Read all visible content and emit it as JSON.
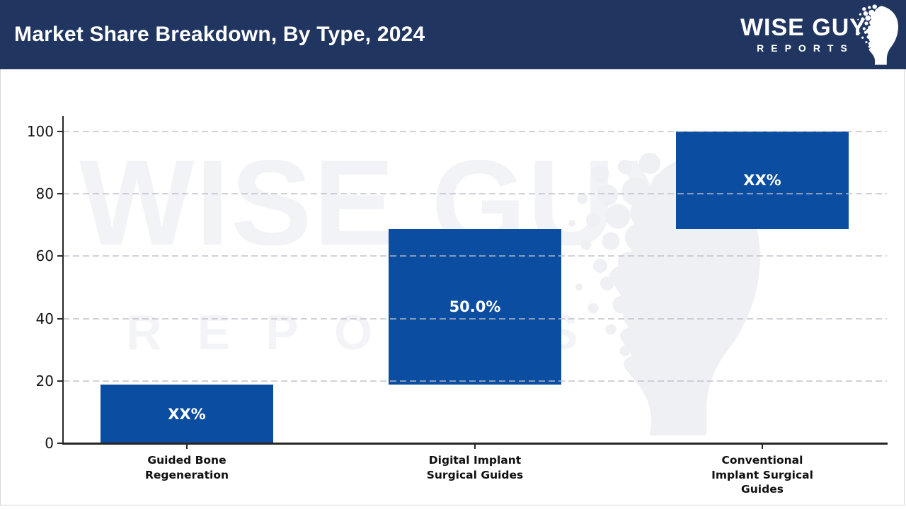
{
  "header": {
    "title": "Market Share Breakdown, By Type, 2024",
    "logo": {
      "line1": "WISE GUY",
      "line2": "REPORTS"
    },
    "bg_color": "#203560"
  },
  "watermark": {
    "line1": "WISE GUY",
    "line2": "REPORTS"
  },
  "chart_data": {
    "type": "bar",
    "subtype": "waterfall-floating-bars",
    "title": "Market Share Breakdown, By Type, 2024",
    "categories": [
      "Guided Bone\nRegeneration",
      "Digital Implant\nSurgical Guides",
      "Conventional\nImplant Surgical\nGuides"
    ],
    "segments": [
      {
        "category": "Guided Bone Regeneration",
        "start": 0,
        "end": 18.8,
        "label": "XX%"
      },
      {
        "category": "Digital Implant Surgical Guides",
        "start": 18.8,
        "end": 68.8,
        "label": "50.0%"
      },
      {
        "category": "Conventional Implant Surgical Guides",
        "start": 68.8,
        "end": 100,
        "label": "XX%"
      }
    ],
    "ylim": [
      0,
      100
    ],
    "yticks": [
      0,
      20,
      40,
      60,
      80,
      100
    ],
    "xlabel": "",
    "ylabel": "",
    "grid": {
      "horizontal": true,
      "style": "dashed",
      "above_bars": true
    },
    "legend": "none",
    "bar_color": "#0b4da0",
    "bar_label_color": "#ffffff"
  }
}
